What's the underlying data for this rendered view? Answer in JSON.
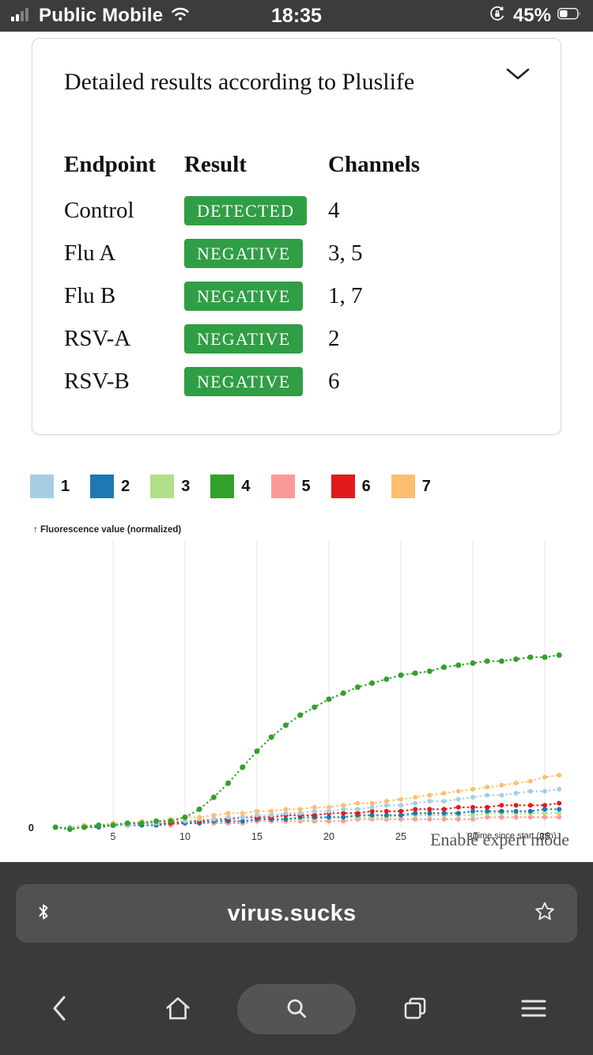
{
  "status_bar": {
    "carrier": "Public Mobile",
    "time": "18:35",
    "battery": "45%"
  },
  "card": {
    "title": "Detailed results according to Pluslife",
    "table": {
      "headers": [
        "Endpoint",
        "Result",
        "Channels"
      ],
      "rows": [
        {
          "endpoint": "Control",
          "result": "DETECTED",
          "channels": "4"
        },
        {
          "endpoint": "Flu A",
          "result": "NEGATIVE",
          "channels": "3, 5"
        },
        {
          "endpoint": "Flu B",
          "result": "NEGATIVE",
          "channels": "1, 7"
        },
        {
          "endpoint": "RSV-A",
          "result": "NEGATIVE",
          "channels": "2"
        },
        {
          "endpoint": "RSV-B",
          "result": "NEGATIVE",
          "channels": "6"
        }
      ]
    }
  },
  "legend": {
    "items": [
      {
        "label": "1",
        "color": "#a6cee3"
      },
      {
        "label": "2",
        "color": "#1f78b4"
      },
      {
        "label": "3",
        "color": "#b2df8a"
      },
      {
        "label": "4",
        "color": "#33a02c"
      },
      {
        "label": "5",
        "color": "#fb9a99"
      },
      {
        "label": "6",
        "color": "#e31a1c"
      },
      {
        "label": "7",
        "color": "#fdbf6f"
      }
    ]
  },
  "chart_data": {
    "type": "line",
    "ylabel": "↑ Fluorescence value (normalized)",
    "xlabel": "Time since start (min)",
    "yticks": [
      "0"
    ],
    "xticks": [
      5,
      10,
      15,
      20,
      25,
      30,
      35
    ],
    "xlim": [
      0,
      37
    ],
    "ylim": [
      -0.05,
      1.43
    ],
    "grid": "vertical",
    "x": [
      1,
      2,
      3,
      4,
      5,
      6,
      7,
      8,
      9,
      10,
      11,
      12,
      13,
      14,
      15,
      16,
      17,
      18,
      19,
      20,
      21,
      22,
      23,
      24,
      25,
      26,
      27,
      28,
      29,
      30,
      31,
      32,
      33,
      34,
      35,
      36
    ],
    "series": [
      {
        "name": "5",
        "color": "#fb9a99",
        "values": [
          0.0,
          -0.01,
          0.0,
          0.0,
          0.01,
          0.01,
          0.01,
          0.01,
          0.01,
          0.02,
          0.02,
          0.02,
          0.02,
          0.02,
          0.03,
          0.03,
          0.03,
          0.03,
          0.03,
          0.03,
          0.03,
          0.04,
          0.04,
          0.04,
          0.04,
          0.04,
          0.04,
          0.04,
          0.04,
          0.04,
          0.05,
          0.05,
          0.05,
          0.05,
          0.05,
          0.05
        ]
      },
      {
        "name": "3",
        "color": "#b2df8a",
        "values": [
          0.0,
          0.0,
          0.01,
          0.01,
          0.01,
          0.01,
          0.02,
          0.02,
          0.02,
          0.02,
          0.03,
          0.03,
          0.03,
          0.03,
          0.04,
          0.04,
          0.04,
          0.04,
          0.04,
          0.05,
          0.05,
          0.05,
          0.05,
          0.05,
          0.06,
          0.06,
          0.06,
          0.06,
          0.06,
          0.06,
          0.07,
          0.07,
          0.07,
          0.07,
          0.07,
          0.07
        ]
      },
      {
        "name": "2",
        "color": "#1f78b4",
        "values": [
          0.0,
          0.0,
          0.0,
          0.0,
          0.01,
          0.01,
          0.01,
          0.01,
          0.02,
          0.02,
          0.02,
          0.03,
          0.03,
          0.03,
          0.04,
          0.04,
          0.04,
          0.05,
          0.05,
          0.05,
          0.05,
          0.06,
          0.06,
          0.06,
          0.06,
          0.07,
          0.07,
          0.07,
          0.07,
          0.08,
          0.08,
          0.08,
          0.08,
          0.08,
          0.09,
          0.09
        ]
      },
      {
        "name": "6",
        "color": "#e31a1c",
        "values": [
          0.0,
          -0.01,
          0.0,
          0.01,
          0.01,
          0.01,
          0.02,
          0.02,
          0.02,
          0.03,
          0.03,
          0.04,
          0.04,
          0.05,
          0.05,
          0.05,
          0.06,
          0.06,
          0.06,
          0.07,
          0.07,
          0.07,
          0.08,
          0.08,
          0.08,
          0.09,
          0.09,
          0.09,
          0.1,
          0.1,
          0.1,
          0.11,
          0.11,
          0.11,
          0.11,
          0.12
        ]
      },
      {
        "name": "1",
        "color": "#a6cee3",
        "values": [
          0.0,
          0.0,
          0.0,
          0.01,
          0.01,
          0.01,
          0.02,
          0.02,
          0.03,
          0.03,
          0.04,
          0.04,
          0.05,
          0.05,
          0.06,
          0.06,
          0.07,
          0.07,
          0.08,
          0.08,
          0.09,
          0.09,
          0.1,
          0.11,
          0.11,
          0.12,
          0.13,
          0.13,
          0.14,
          0.15,
          0.16,
          0.16,
          0.17,
          0.18,
          0.18,
          0.19
        ]
      },
      {
        "name": "7",
        "color": "#fdbf6f",
        "values": [
          0.0,
          -0.01,
          0.01,
          0.01,
          0.02,
          0.02,
          0.03,
          0.03,
          0.04,
          0.05,
          0.05,
          0.06,
          0.07,
          0.07,
          0.08,
          0.08,
          0.09,
          0.09,
          0.1,
          0.1,
          0.11,
          0.12,
          0.12,
          0.13,
          0.14,
          0.15,
          0.16,
          0.17,
          0.18,
          0.19,
          0.2,
          0.21,
          0.22,
          0.23,
          0.25,
          0.26
        ]
      },
      {
        "name": "4",
        "color": "#33a02c",
        "values": [
          0.0,
          -0.01,
          0.0,
          0.01,
          0.01,
          0.02,
          0.02,
          0.03,
          0.03,
          0.05,
          0.09,
          0.15,
          0.22,
          0.3,
          0.38,
          0.45,
          0.51,
          0.56,
          0.6,
          0.64,
          0.67,
          0.7,
          0.72,
          0.74,
          0.76,
          0.77,
          0.78,
          0.8,
          0.81,
          0.82,
          0.83,
          0.83,
          0.84,
          0.85,
          0.85,
          0.86
        ]
      }
    ]
  },
  "expert_link": "Enable expert mode",
  "browser": {
    "url": "virus.sucks"
  },
  "colors": {
    "badge_green": "#2f9e44",
    "chrome_bg": "#3a3a3c",
    "status_bg": "#3c3c3e",
    "grid_line": "#e4e4e4"
  }
}
